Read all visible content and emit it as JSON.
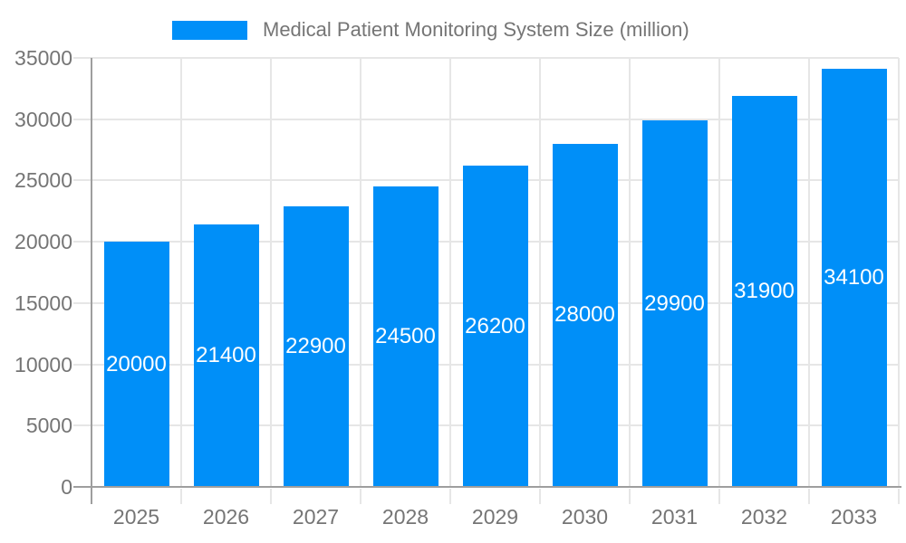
{
  "chart_data": {
    "type": "bar",
    "title": "Medical Patient Monitoring System Size (million)",
    "legend": {
      "label": "Medical Patient Monitoring System Size (million)",
      "position": "top"
    },
    "categories": [
      "2025",
      "2026",
      "2027",
      "2028",
      "2029",
      "2030",
      "2031",
      "2032",
      "2033"
    ],
    "values": [
      20000,
      21400,
      22900,
      24500,
      26200,
      28000,
      29900,
      31900,
      34100
    ],
    "bar_value_labels": [
      "20000",
      "21400",
      "22900",
      "24500",
      "26200",
      "28000",
      "29900",
      "31900",
      "34100"
    ],
    "xlabel": "",
    "ylabel": "",
    "ylim": [
      0,
      35000
    ],
    "ytick_step": 5000,
    "ytick_labels": [
      "0",
      "5000",
      "10000",
      "15000",
      "20000",
      "25000",
      "30000",
      "35000"
    ],
    "grid": true,
    "colors": {
      "bar": "#008ff8",
      "bar_label": "#ffffff",
      "grid": "#e6e6e6",
      "axis": "#9e9e9e",
      "tick_text": "#757575",
      "legend_text": "#757575",
      "background": "#ffffff"
    }
  }
}
